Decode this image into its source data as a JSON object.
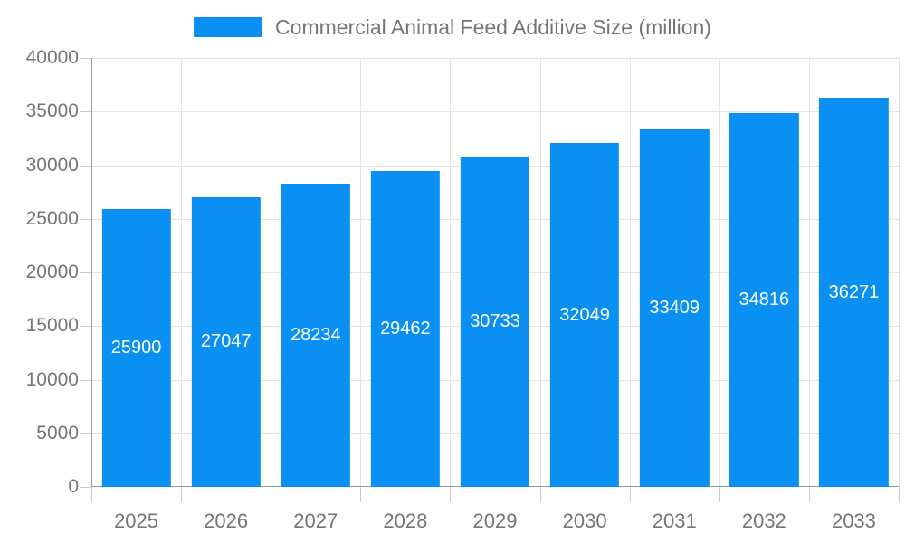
{
  "legend": {
    "label": "Commercial Animal Feed Additive Size (million)"
  },
  "colors": {
    "bar": "#0a90f2",
    "grid": "#e3e3e3",
    "axis": "#9a9a9a",
    "tick": "#cccccc",
    "tick_text": "#757575",
    "bar_label": "#ffffff",
    "background": "#ffffff"
  },
  "chart_data": {
    "type": "bar",
    "title": "Commercial Animal Feed Additive Size (million)",
    "categories": [
      "2025",
      "2026",
      "2027",
      "2028",
      "2029",
      "2030",
      "2031",
      "2032",
      "2033"
    ],
    "series": [
      {
        "name": "Commercial Animal Feed Additive Size (million)",
        "values": [
          25900,
          27047,
          28234,
          29462,
          30733,
          32049,
          33409,
          34816,
          36271
        ]
      }
    ],
    "xlabel": "",
    "ylabel": "",
    "ylim": [
      0,
      40000
    ],
    "ytick_step": 5000,
    "yticks": [
      0,
      5000,
      10000,
      15000,
      20000,
      25000,
      30000,
      35000,
      40000
    ],
    "grid": true,
    "legend_position": "top",
    "bar_label_position": "inside-center"
  }
}
